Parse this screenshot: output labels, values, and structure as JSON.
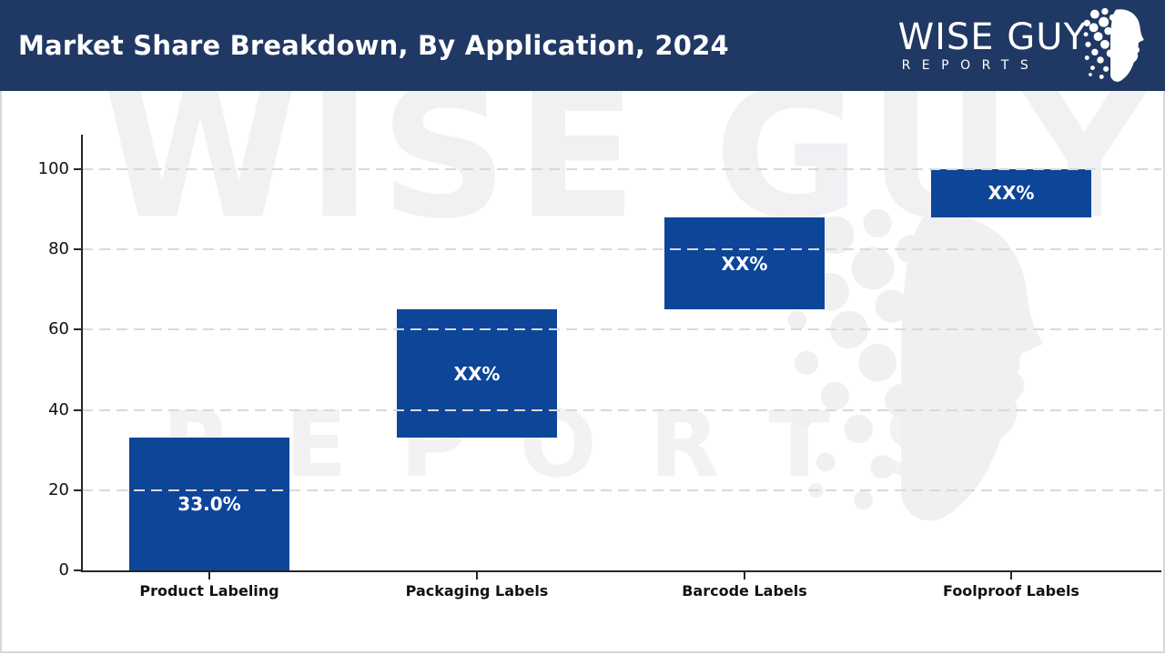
{
  "header": {
    "title": "Market Share Breakdown, By Application, 2024",
    "logo": {
      "line1": "WISE GUY",
      "line2": "REPORTS"
    }
  },
  "watermark": {
    "line1": "WISE GUY",
    "line2": "REPORTS"
  },
  "colors": {
    "header_bg": "#203864",
    "bar": "#0d4599",
    "bar_label": "#ffffff",
    "grid": "#d9d9d9",
    "axis": "#262626",
    "watermark": "#f1f1f4"
  },
  "chart_data": {
    "type": "bar",
    "subtype": "waterfall",
    "title": "Market Share Breakdown, By Application, 2024",
    "categories": [
      "Product Labeling",
      "Packaging Labels",
      "Barcode Labels",
      "Foolproof Labels"
    ],
    "series": [
      {
        "name": "Market share",
        "segments": [
          {
            "category": "Product Labeling",
            "start": 0,
            "end": 33,
            "label": "33.0%"
          },
          {
            "category": "Packaging Labels",
            "start": 33,
            "end": 65,
            "label": "XX%"
          },
          {
            "category": "Barcode Labels",
            "start": 65,
            "end": 88,
            "label": "XX%"
          },
          {
            "category": "Foolproof Labels",
            "start": 88,
            "end": 100,
            "label": "XX%"
          }
        ]
      }
    ],
    "xlabel": "",
    "ylabel": "",
    "ylim": [
      0,
      100
    ],
    "yticks": [
      0,
      20,
      40,
      60,
      80,
      100
    ],
    "grid": "horizontal-dashed",
    "legend": false
  }
}
